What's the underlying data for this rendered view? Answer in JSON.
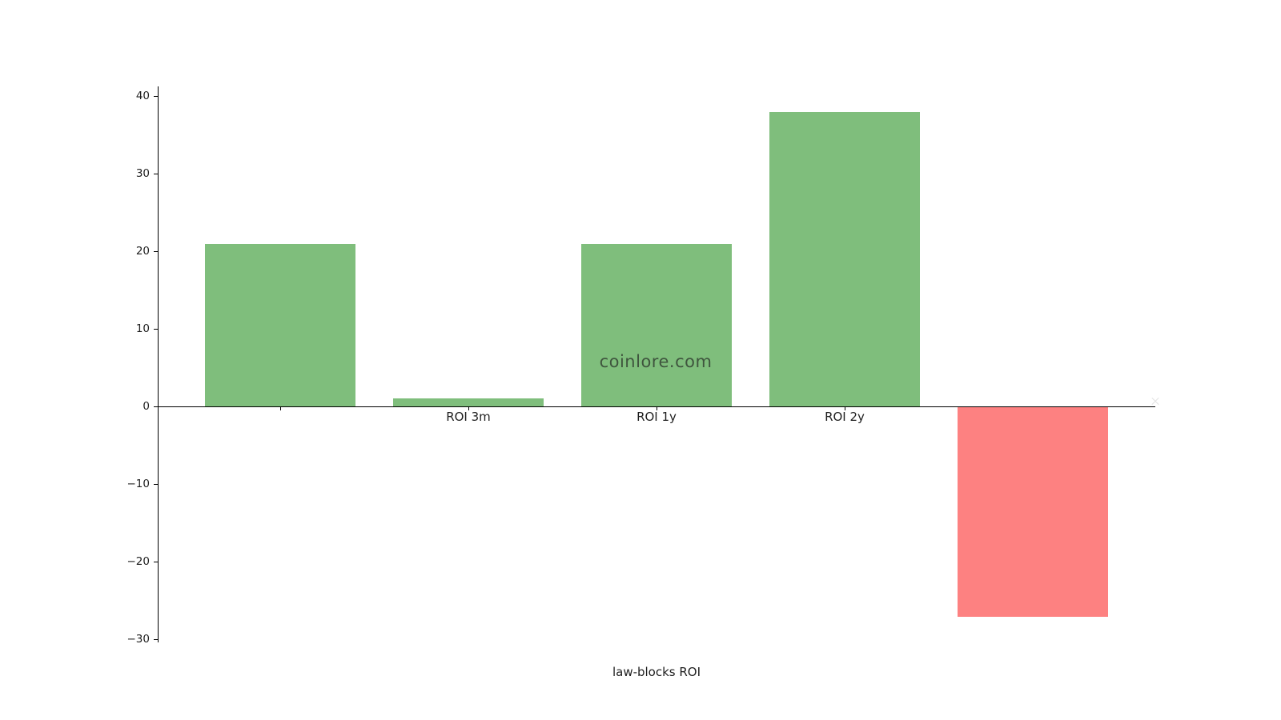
{
  "chart_data": {
    "type": "bar",
    "categories": [
      "",
      "ROI 3m",
      "ROI 1y",
      "ROI 2y",
      ""
    ],
    "values": [
      21,
      1,
      21,
      38,
      -27
    ],
    "bar_colors": [
      "#7fbe7c",
      "#7fbe7c",
      "#7fbe7c",
      "#7fbe7c",
      "#fd8181"
    ],
    "title": "",
    "xlabel": "law-blocks ROI",
    "ylabel": "",
    "y_ticks": [
      40,
      30,
      20,
      10,
      0,
      -10,
      -20,
      -30
    ],
    "y_tick_labels": [
      "40",
      "30",
      "20",
      "10",
      "0",
      "−10",
      "−20",
      "−30"
    ],
    "x_ticks_visible": [
      true,
      true,
      true,
      true,
      false
    ],
    "ylim": [
      -30.5,
      41.5
    ],
    "grid": false,
    "legend": "none",
    "watermark": "coinlore.com",
    "positive_color": "#7fbe7c",
    "negative_color": "#fd8181",
    "axis_color": "#000000",
    "tick_label_color": "#1f1f1f"
  }
}
